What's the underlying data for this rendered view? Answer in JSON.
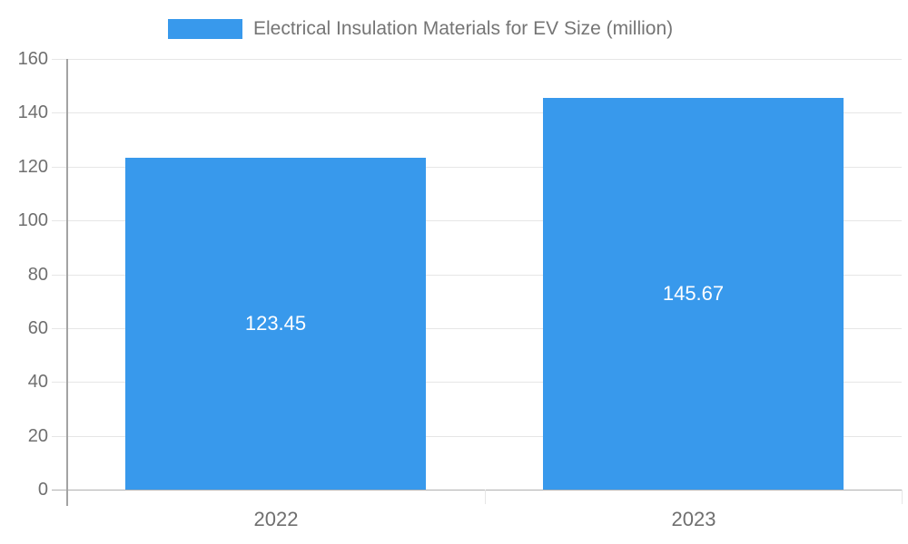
{
  "chart": {
    "colors": {
      "bar": "#3899ec",
      "bar_label_text": "#ffffff",
      "legend_text": "#757575",
      "axis_text": "#6f6f6f",
      "gridline": "#e6e6e6",
      "baseline": "#b0b0b0",
      "axis_line": "#a3a3a3",
      "background": "#ffffff"
    }
  },
  "chart_data": {
    "type": "bar",
    "title": "Electrical Insulation Materials for EV Size (million)",
    "legend": "Electrical Insulation Materials for EV Size (million)",
    "legend_position": "top",
    "categories": [
      "2022",
      "2023"
    ],
    "series": [
      {
        "name": "Electrical Insulation Materials for EV Size (million)",
        "values": [
          123.45,
          145.67
        ]
      }
    ],
    "values": [
      123.45,
      145.67
    ],
    "data_labels": [
      "123.45",
      "145.67"
    ],
    "xlabel": "",
    "ylabel": "",
    "ylim": [
      0,
      160
    ],
    "yticks": [
      0,
      20,
      40,
      60,
      80,
      100,
      120,
      140,
      160
    ],
    "grid": true
  }
}
